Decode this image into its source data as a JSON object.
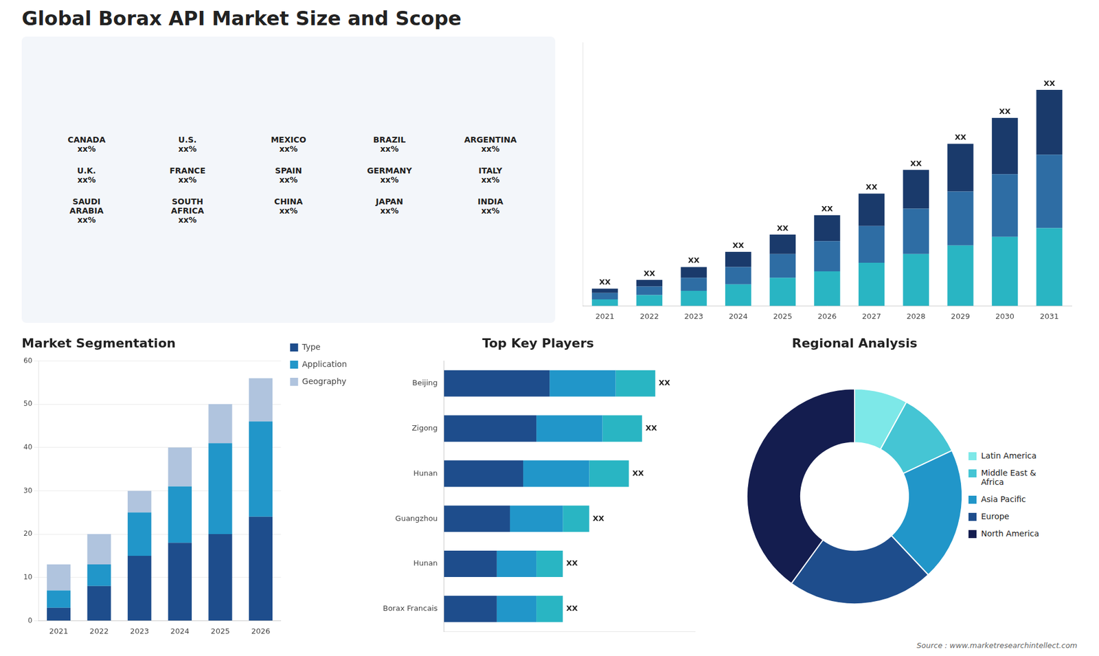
{
  "title": "Global Borax API Market Size and Scope",
  "annotations": [
    "Source : www.marketresearchintellect.com"
  ],
  "chart_data": [
    {
      "type": "map",
      "annotations": [
        "CANADA\nxx%",
        "U.S.\nxx%",
        "MEXICO\nxx%",
        "BRAZIL\nxx%",
        "ARGENTINA\nxx%",
        "U.K.\nxx%",
        "FRANCE\nxx%",
        "SPAIN\nxx%",
        "GERMANY\nxx%",
        "ITALY\nxx%",
        "SAUDI\nARABIA\nxx%",
        "SOUTH\nAFRICA\nxx%",
        "CHINA\nxx%",
        "JAPAN\nxx%",
        "INDIA\nxx%"
      ]
    },
    {
      "type": "bar",
      "stacked": true,
      "categories": [
        "2021",
        "2022",
        "2023",
        "2024",
        "2025",
        "2026",
        "2027",
        "2028",
        "2029",
        "2030",
        "2031"
      ],
      "series": [
        {
          "color": "#29b5c3",
          "values": [
            3,
            5,
            7,
            10,
            13,
            16,
            20,
            24,
            28,
            32,
            36
          ]
        },
        {
          "color": "#2e6da4",
          "values": [
            3,
            4,
            6,
            8,
            11,
            14,
            17,
            21,
            25,
            29,
            34
          ]
        },
        {
          "color": "#1a3a6b",
          "values": [
            2,
            3,
            5,
            7,
            9,
            12,
            15,
            18,
            22,
            26,
            30
          ],
          "value_labels": [
            "XX",
            "XX",
            "XX",
            "XX",
            "XX",
            "XX",
            "XX",
            "XX",
            "XX",
            "XX",
            "XX"
          ]
        }
      ],
      "ylim": [
        0,
        122
      ],
      "tick_labels": "x",
      "grid": false
    },
    {
      "type": "bar",
      "title": "Market Segmentation",
      "stacked": true,
      "categories": [
        "2021",
        "2022",
        "2023",
        "2024",
        "2025",
        "2026"
      ],
      "series": [
        {
          "name": "Type",
          "color": "#1e4d8c",
          "values": [
            3,
            8,
            15,
            18,
            20,
            24
          ]
        },
        {
          "name": "Application",
          "color": "#2196c9",
          "values": [
            4,
            5,
            10,
            13,
            21,
            22
          ]
        },
        {
          "name": "Geography",
          "color": "#b0c4de",
          "values": [
            6,
            7,
            5,
            9,
            9,
            10
          ]
        }
      ],
      "ylim": [
        0,
        60
      ],
      "yticks": [
        0,
        10,
        20,
        30,
        40,
        50,
        60
      ],
      "grid": true,
      "legend": "right"
    },
    {
      "type": "bar",
      "title": "Top Key Players",
      "orientation": "horizontal",
      "stacked": true,
      "categories": [
        "Beijing",
        "Zigong",
        "Hunan",
        "Guangzhou",
        "Hunan",
        "Borax Francais"
      ],
      "series": [
        {
          "color": "#1e4d8c",
          "values": [
            8,
            7,
            6,
            5,
            4,
            4
          ]
        },
        {
          "color": "#2196c9",
          "values": [
            5,
            5,
            5,
            4,
            3,
            3
          ]
        },
        {
          "color": "#29b5c3",
          "values": [
            3,
            3,
            3,
            2,
            2,
            2
          ],
          "value_labels": [
            "XX",
            "XX",
            "XX",
            "XX",
            "XX",
            "XX"
          ]
        }
      ],
      "xlim": [
        0,
        19
      ],
      "tick_labels": "y",
      "grid": false
    },
    {
      "type": "doughnut",
      "title": "Regional Analysis",
      "categories": [
        "Latin America",
        "Middle East &\nAfrica",
        "Asia Pacific",
        "Europe",
        "North America"
      ],
      "values": [
        8,
        10,
        20,
        22,
        40
      ],
      "colors": [
        "#7de8e8",
        "#45c5d4",
        "#2196c9",
        "#1e4d8c",
        "#141d4f"
      ],
      "legend": "right"
    }
  ]
}
